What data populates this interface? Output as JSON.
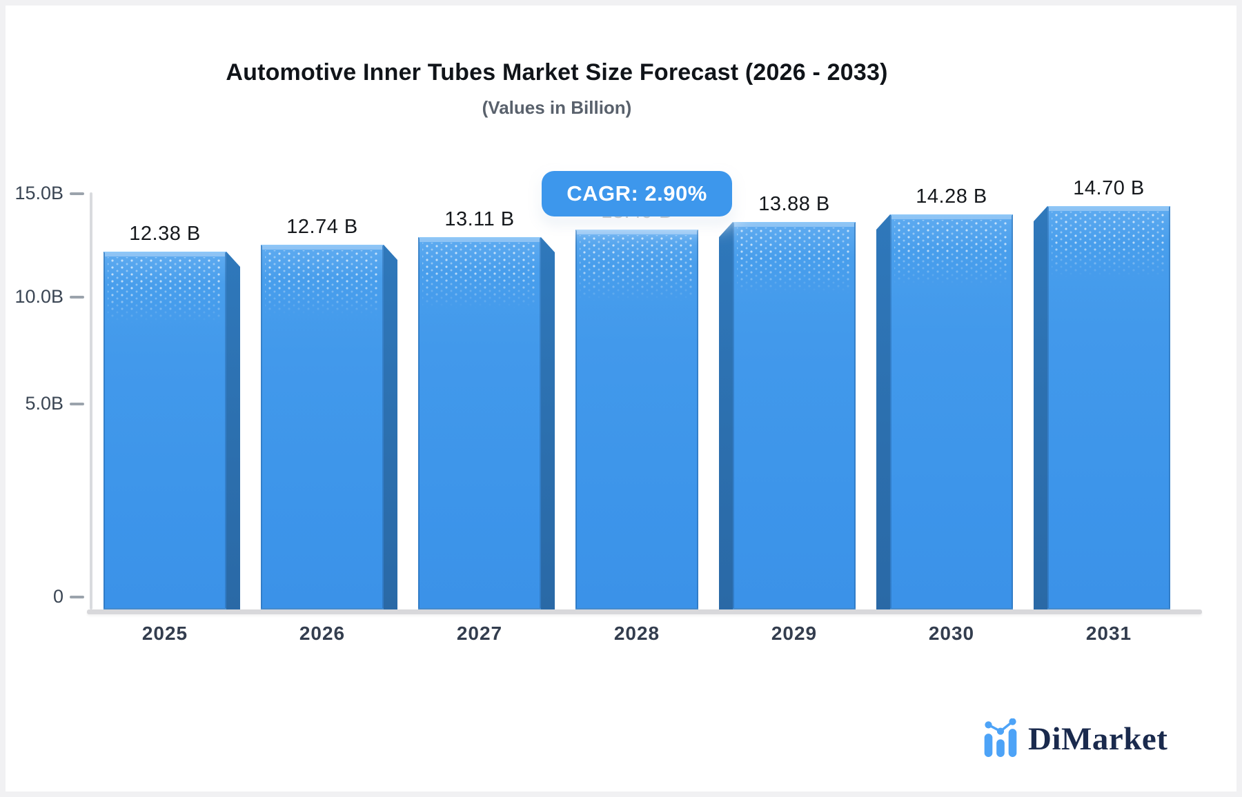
{
  "header": {
    "title": "Automotive Inner Tubes Market Size Forecast (2026 - 2033)",
    "subtitle": "(Values in Billion)"
  },
  "badge": {
    "label": "CAGR: 2.90%"
  },
  "chart_data": {
    "type": "bar",
    "title": "Automotive Inner Tubes Market Size Forecast (2026 - 2033)",
    "subtitle": "(Values in Billion)",
    "categories": [
      "2025",
      "2026",
      "2027",
      "2028",
      "2029",
      "2030",
      "2031"
    ],
    "values": [
      12.38,
      12.74,
      13.11,
      13.49,
      13.88,
      14.28,
      14.7
    ],
    "value_labels": [
      "12.38 B",
      "12.74 B",
      "13.11 B",
      "13.49 B",
      "13.88 B",
      "14.28 B",
      "14.70 B"
    ],
    "unit": "Billion",
    "cagr": "2.90%",
    "y_ticks": [
      "15.0B",
      "10.0B",
      "5.0B",
      "0"
    ],
    "ylim": [
      0,
      15
    ],
    "grid": false,
    "legend": false,
    "bar_style": "3d-beveled",
    "xlabel": "",
    "ylabel": ""
  },
  "colors": {
    "bar_face": "#4299EB",
    "bar_side": "#2D72B3",
    "badge_bg": "#3D97EC",
    "axis_text": "#3A4553",
    "title_text": "#101419",
    "subtitle_text": "#59616C",
    "baseline": "#D8D8DB",
    "logo_navy": "#1A2A4D",
    "logo_blue": "#4DA3F7",
    "frame": "#F1F1F3"
  },
  "logo": {
    "text": "DiMarket"
  }
}
